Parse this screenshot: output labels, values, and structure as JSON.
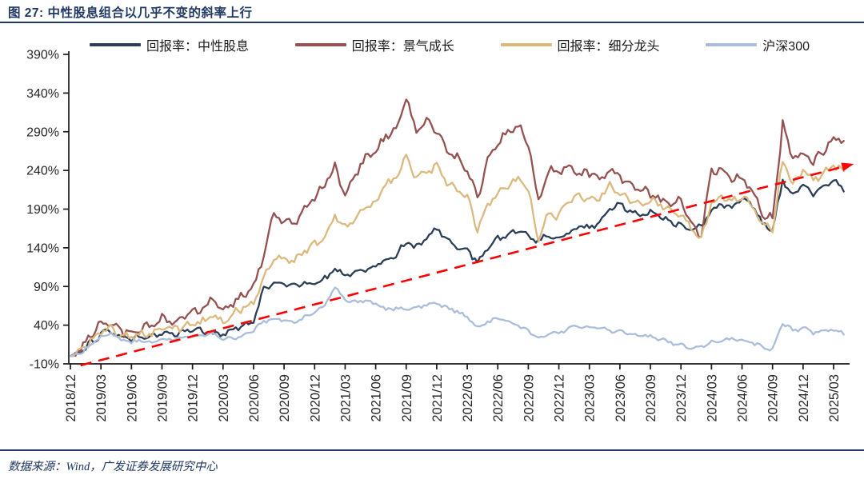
{
  "header": {
    "title": "图 27:  中性股息组合以几乎不变的斜率上行"
  },
  "footer": {
    "source": "数据来源：Wind，广发证券发展研究中心"
  },
  "colors": {
    "title_navy": "#1F3864",
    "axis": "#1A1A1A",
    "tick_text": "#262626",
    "trend_red": "#FE0000"
  },
  "chart_data": {
    "type": "line",
    "title": "图 27: 中性股息组合以几乎不变的斜率上行",
    "x_start": "2018/12",
    "x_interval_months": 1,
    "x_tick_every_months": 3,
    "x_tick_labels": [
      "2018/12",
      "2019/03",
      "2019/06",
      "2019/09",
      "2019/12",
      "2020/03",
      "2020/06",
      "2020/09",
      "2020/12",
      "2021/03",
      "2021/06",
      "2021/09",
      "2021/12",
      "2022/03",
      "2022/06",
      "2022/09",
      "2022/12",
      "2023/03",
      "2023/06",
      "2023/09",
      "2023/12",
      "2024/03",
      "2024/06",
      "2024/09",
      "2024/12",
      "2025/03"
    ],
    "y_ticks": [
      -10,
      40,
      90,
      140,
      190,
      240,
      290,
      340,
      390
    ],
    "y_tick_suffix": "%",
    "ylim": [
      -10,
      390
    ],
    "grid": false,
    "legend_position": "top",
    "series": [
      {
        "id": "neutral-dividend",
        "name": "回报率：中性股息",
        "color": "#2C3E57",
        "noise_amp": 4,
        "monthly_values": [
          0,
          5,
          18,
          28,
          33,
          25,
          22,
          26,
          24,
          30,
          28,
          30,
          35,
          33,
          30,
          28,
          35,
          38,
          45,
          88,
          95,
          92,
          90,
          93,
          97,
          100,
          112,
          103,
          108,
          112,
          118,
          125,
          130,
          148,
          140,
          152,
          166,
          150,
          142,
          138,
          120,
          140,
          152,
          158,
          162,
          155,
          148,
          158,
          152,
          160,
          168,
          165,
          172,
          192,
          196,
          188,
          182,
          186,
          180,
          172,
          170,
          162,
          168,
          190,
          196,
          192,
          205,
          195,
          172,
          163,
          228,
          208,
          222,
          210,
          218,
          228,
          212
        ]
      },
      {
        "id": "boom-growth",
        "name": "回报率：景气成长",
        "color": "#955150",
        "noise_amp": 6,
        "monthly_values": [
          0,
          8,
          28,
          42,
          45,
          32,
          30,
          38,
          40,
          50,
          46,
          50,
          55,
          60,
          75,
          58,
          68,
          78,
          90,
          130,
          185,
          175,
          170,
          188,
          205,
          225,
          245,
          210,
          235,
          255,
          262,
          285,
          295,
          335,
          290,
          305,
          290,
          265,
          258,
          240,
          202,
          255,
          275,
          290,
          298,
          275,
          200,
          240,
          238,
          245,
          235,
          238,
          230,
          240,
          232,
          222,
          215,
          210,
          200,
          198,
          200,
          175,
          155,
          238,
          242,
          228,
          232,
          215,
          185,
          178,
          300,
          255,
          262,
          250,
          265,
          285,
          278
        ]
      },
      {
        "id": "niche-leader",
        "name": "回报率：细分龙头",
        "color": "#DBB97F",
        "noise_amp": 5,
        "monthly_values": [
          0,
          5,
          20,
          32,
          35,
          26,
          25,
          30,
          28,
          38,
          35,
          38,
          42,
          45,
          52,
          45,
          55,
          62,
          70,
          100,
          128,
          126,
          124,
          135,
          145,
          155,
          182,
          168,
          175,
          192,
          200,
          222,
          228,
          258,
          230,
          238,
          245,
          225,
          215,
          205,
          165,
          195,
          212,
          222,
          228,
          215,
          152,
          185,
          180,
          200,
          208,
          202,
          205,
          222,
          210,
          200,
          195,
          202,
          195,
          188,
          185,
          165,
          150,
          198,
          205,
          198,
          208,
          195,
          172,
          165,
          252,
          225,
          240,
          228,
          235,
          248,
          238
        ]
      },
      {
        "id": "csi300",
        "name": "沪深300",
        "color": "#ABBDDA",
        "noise_amp": 2.5,
        "monthly_values": [
          0,
          3,
          15,
          25,
          30,
          20,
          18,
          20,
          18,
          22,
          21,
          24,
          25,
          26,
          28,
          20,
          24,
          26,
          33,
          45,
          48,
          46,
          44,
          50,
          56,
          65,
          90,
          72,
          70,
          72,
          68,
          60,
          62,
          60,
          63,
          66,
          69,
          62,
          58,
          50,
          38,
          44,
          48,
          45,
          40,
          32,
          22,
          30,
          30,
          36,
          38,
          37,
          36,
          33,
          32,
          30,
          26,
          26,
          22,
          18,
          15,
          10,
          12,
          18,
          20,
          22,
          22,
          17,
          12,
          8,
          43,
          33,
          36,
          30,
          33,
          34,
          30
        ]
      }
    ],
    "trendline": {
      "id": "trend-arrow",
      "style": "dashed",
      "color": "#FE0000",
      "arrow": true,
      "start": {
        "month": 1,
        "value": -12
      },
      "end": {
        "month": 76.3,
        "value": 246
      }
    }
  }
}
